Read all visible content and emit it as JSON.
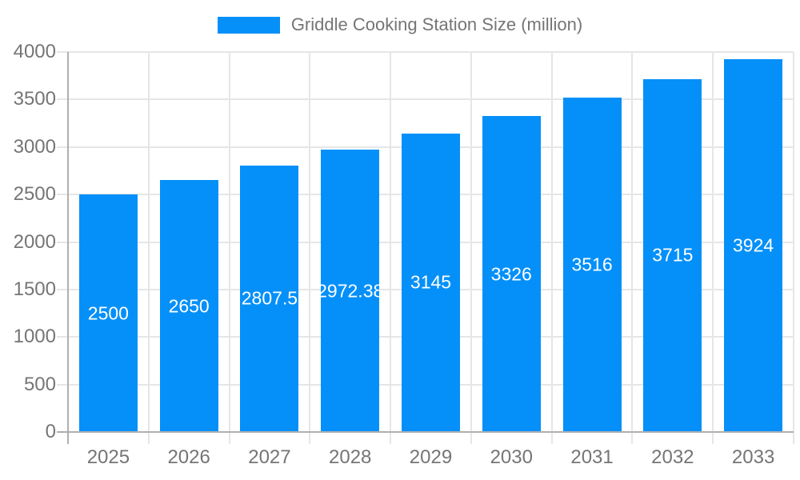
{
  "chart_data": {
    "type": "bar",
    "title": "Griddle Cooking Station Size (million)",
    "categories": [
      "2025",
      "2026",
      "2027",
      "2028",
      "2029",
      "2030",
      "2031",
      "2032",
      "2033"
    ],
    "series": [
      {
        "name": "Griddle Cooking Station Size (million)",
        "values": [
          2500,
          2650,
          2807.5,
          2972.38,
          3145,
          3326,
          3516,
          3715,
          3924
        ]
      }
    ],
    "value_labels": [
      "2500",
      "2650",
      "2807.5",
      "2972.38",
      "3145",
      "3326",
      "3516",
      "3715",
      "3924"
    ],
    "xlabel": "",
    "ylabel": "",
    "ylim": [
      0,
      4000
    ],
    "yticks": [
      0,
      500,
      1000,
      1500,
      2000,
      2500,
      3000,
      3500,
      4000
    ],
    "grid": true,
    "legend_position": "top-center",
    "colors": {
      "bar": "#0590f9",
      "value_label_text": "#ffffff",
      "axis_text": "#757575",
      "gridline": "#e6e6e6",
      "axis_line": "#b0b0b0"
    }
  }
}
